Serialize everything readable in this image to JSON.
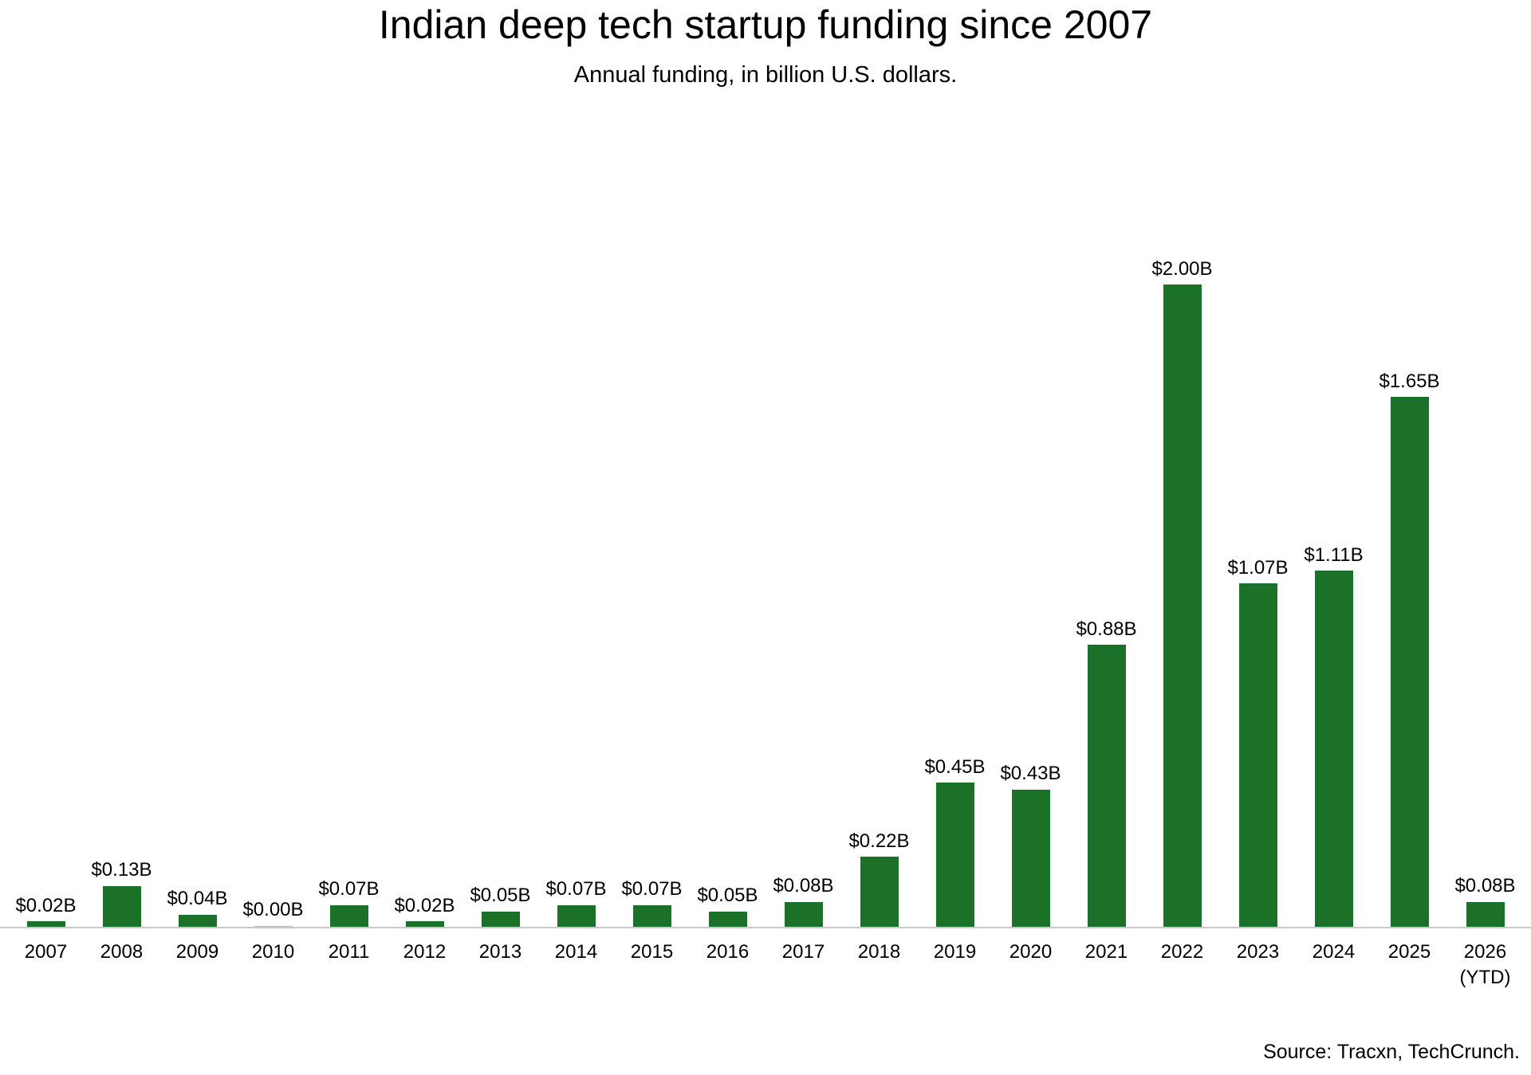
{
  "chart_data": {
    "type": "bar",
    "title": "Indian deep tech startup funding since 2007",
    "subtitle": "Annual funding, in billion U.S. dollars.",
    "categories": [
      "2007",
      "2008",
      "2009",
      "2010",
      "2011",
      "2012",
      "2013",
      "2014",
      "2015",
      "2016",
      "2017",
      "2018",
      "2019",
      "2020",
      "2021",
      "2022",
      "2023",
      "2024",
      "2025",
      "2026 (YTD)"
    ],
    "values": [
      0.02,
      0.13,
      0.04,
      0.0,
      0.07,
      0.02,
      0.05,
      0.07,
      0.07,
      0.05,
      0.08,
      0.22,
      0.45,
      0.43,
      0.88,
      2.0,
      1.07,
      1.11,
      1.65,
      0.08
    ],
    "data_labels": [
      "$0.02B",
      "$0.13B",
      "$0.04B",
      "$0.00B",
      "$0.07B",
      "$0.02B",
      "$0.05B",
      "$0.07B",
      "$0.07B",
      "$0.05B",
      "$0.08B",
      "$0.22B",
      "$0.45B",
      "$0.43B",
      "$0.88B",
      "$2.00B",
      "$1.07B",
      "$1.11B",
      "$1.65B",
      "$0.08B"
    ],
    "tick_labels": [
      {
        "line1": "2007"
      },
      {
        "line1": "2008"
      },
      {
        "line1": "2009"
      },
      {
        "line1": "2010"
      },
      {
        "line1": "2011"
      },
      {
        "line1": "2012"
      },
      {
        "line1": "2013"
      },
      {
        "line1": "2014"
      },
      {
        "line1": "2015"
      },
      {
        "line1": "2016"
      },
      {
        "line1": "2017"
      },
      {
        "line1": "2018"
      },
      {
        "line1": "2019"
      },
      {
        "line1": "2020"
      },
      {
        "line1": "2021"
      },
      {
        "line1": "2022"
      },
      {
        "line1": "2023"
      },
      {
        "line1": "2024"
      },
      {
        "line1": "2025"
      },
      {
        "line1": "2026",
        "line2": "(YTD)"
      }
    ],
    "xlabel": "",
    "ylabel": "",
    "ylim": [
      0,
      2.1
    ],
    "grid": false,
    "legend_position": "none",
    "bar_color": "#1c7128",
    "zero_bar_color": "#a9c4a9",
    "axis_line_color": "#c9c9c9"
  },
  "source": {
    "text": "Source: Tracxn, TechCrunch."
  }
}
